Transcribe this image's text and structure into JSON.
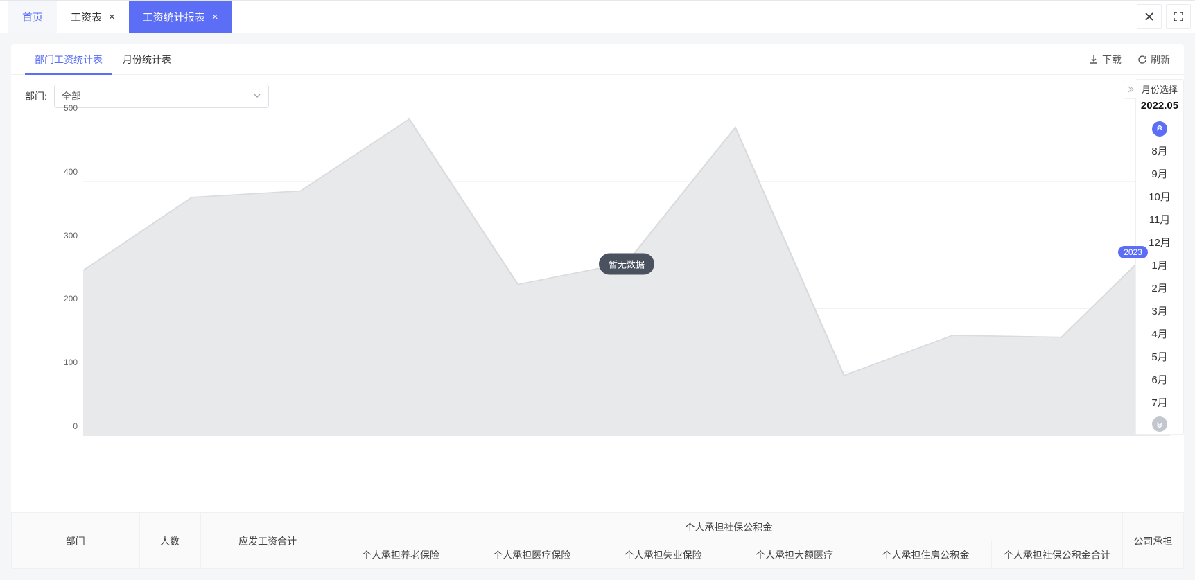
{
  "top_tabs": {
    "home": "首页",
    "tab1": "工资表",
    "tab2": "工资统计报表"
  },
  "sub_tabs": {
    "t1": "部门工资统计表",
    "t2": "月份统计表"
  },
  "actions": {
    "download": "下载",
    "refresh": "刷新"
  },
  "filter": {
    "label": "部门:",
    "value": "全部"
  },
  "table": {
    "headers": {
      "dept": "部门",
      "people": "人数",
      "payable_total": "应发工资合计",
      "personal_group": "个人承担社保公积金",
      "p_pension": "个人承担养老保险",
      "p_medical": "个人承担医疗保险",
      "p_unemployment": "个人承担失业保险",
      "p_critical": "个人承担大额医疗",
      "p_housing": "个人承担住房公积金",
      "p_total": "个人承担社保公积金合计",
      "company_prefix": "公司承担"
    }
  },
  "chart": {
    "type": "area",
    "tooltip": "暂无数据",
    "ylim": [
      0,
      500
    ],
    "ytick_step": 100,
    "yticks": [
      "0",
      "100",
      "200",
      "300",
      "400",
      "500"
    ],
    "n_points": 11,
    "values": [
      260,
      375,
      385,
      498,
      238,
      272,
      485,
      95,
      158,
      155,
      322
    ],
    "fill_color": "#e8e9eb",
    "line_color": "#d9dbde",
    "grid_color": "#f2f2f2",
    "axis_text_color": "#666666",
    "axis_fontsize": 12,
    "background_color": "#ffffff"
  },
  "month_panel": {
    "title": "月份选择",
    "current": "2022.05",
    "year_pill": "2023",
    "items": [
      "8月",
      "9月",
      "10月",
      "11月",
      "12月",
      "1月",
      "2月",
      "3月",
      "4月",
      "5月",
      "6月",
      "7月"
    ],
    "year_pill_after_index": 4
  },
  "colors": {
    "accent": "#5B6EF5"
  }
}
